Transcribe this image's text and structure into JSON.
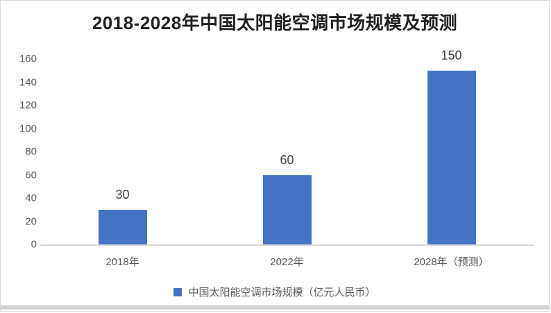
{
  "chart_data": {
    "type": "bar",
    "title": "2018-2028年中国太阳能空调市场规模及预测",
    "categories": [
      "2018年",
      "2022年",
      "2028年（预测）"
    ],
    "values": [
      30,
      60,
      150
    ],
    "data_labels": [
      "30",
      "60",
      "150"
    ],
    "ylim": [
      0,
      160
    ],
    "yticks": [
      0,
      20,
      40,
      60,
      80,
      100,
      120,
      140,
      160
    ],
    "grid": false,
    "legend_position": "bottom",
    "legend": {
      "label": "中国太阳能空调市场规模（亿元人民币）",
      "swatch_color": "#4472c4"
    },
    "colors": {
      "bar": "#4472c4",
      "axis_line": "#d9d9d9",
      "tick_text": "#595959",
      "data_label_text": "#404040",
      "title_text": "#1f1f1f"
    }
  }
}
